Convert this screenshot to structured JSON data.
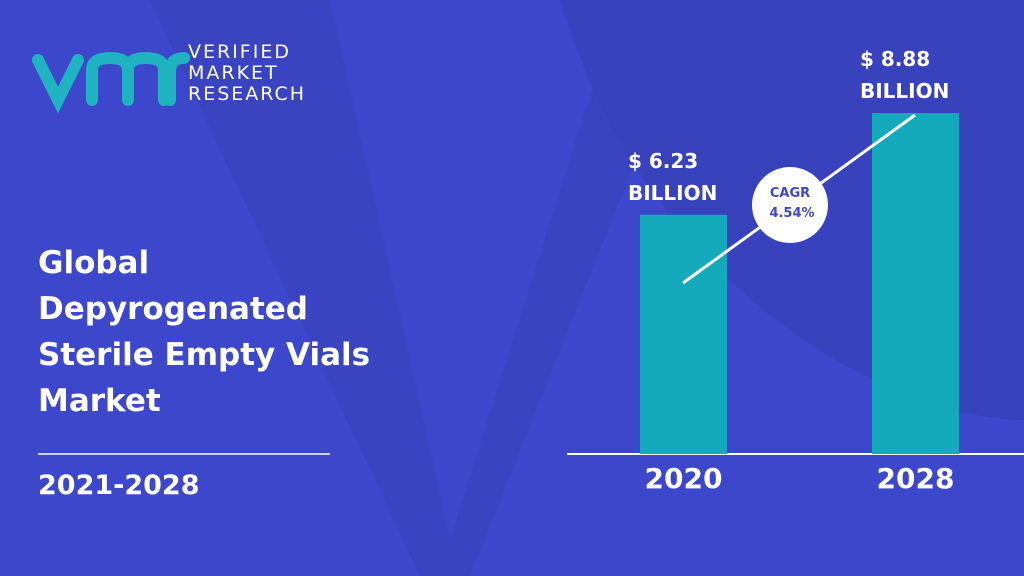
{
  "logo": [
    "VERIFIED",
    "MARKET",
    "RESEARCH"
  ],
  "title_lines": [
    "Global",
    "Depyrogenated",
    "Sterile Empty Vials",
    "Market"
  ],
  "period": "2021-2028",
  "chart_data": {
    "type": "bar",
    "categories": [
      "2020",
      "2028"
    ],
    "values": [
      6.23,
      8.88
    ],
    "value_labels": [
      "$ 6.23 BILLION",
      "$ 8.88 BILLION"
    ],
    "color": "#14aabb",
    "annotations": [
      "CAGR",
      "4.54%"
    ]
  }
}
